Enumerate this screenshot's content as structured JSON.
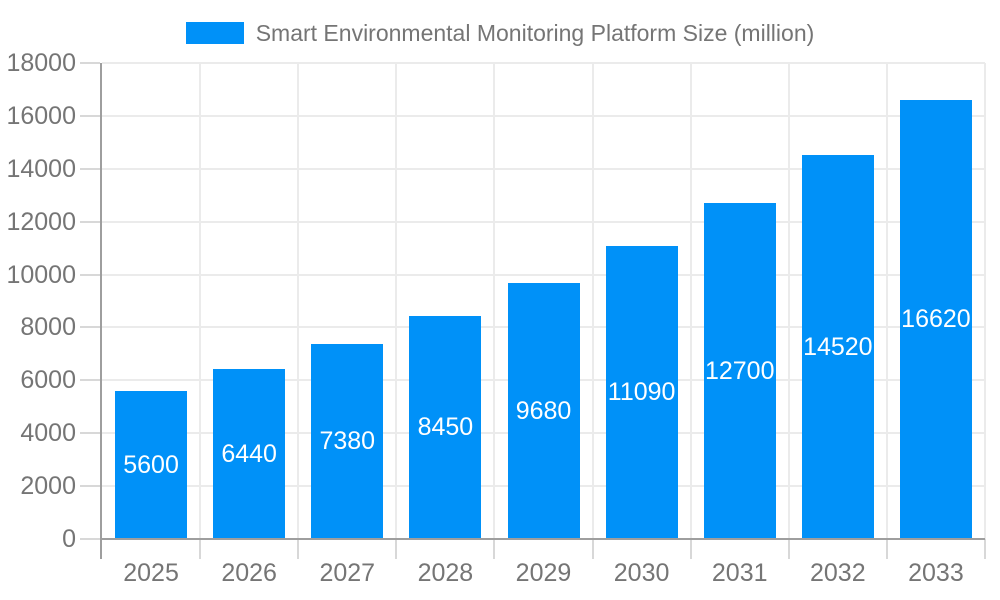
{
  "chart_data": {
    "type": "bar",
    "title": "Smart Environmental Monitoring Platform Size (million)",
    "categories": [
      "2025",
      "2026",
      "2027",
      "2028",
      "2029",
      "2030",
      "2031",
      "2032",
      "2033"
    ],
    "values": [
      5600,
      6440,
      7380,
      8450,
      9680,
      11090,
      12700,
      14520,
      16620
    ],
    "xlabel": "",
    "ylabel": "",
    "ylim": [
      0,
      18000
    ],
    "yticks": [
      0,
      2000,
      4000,
      6000,
      8000,
      10000,
      12000,
      14000,
      16000,
      18000
    ],
    "grid": true,
    "legend_position": "top-center",
    "colors": {
      "bar": "#0091f8",
      "bar_label": "#ffffff",
      "axis_text": "#757575",
      "axis_line": "#9e9e9e",
      "gridline": "#ebebeb",
      "tick": "#d8d8d8",
      "background": "#ffffff"
    }
  }
}
